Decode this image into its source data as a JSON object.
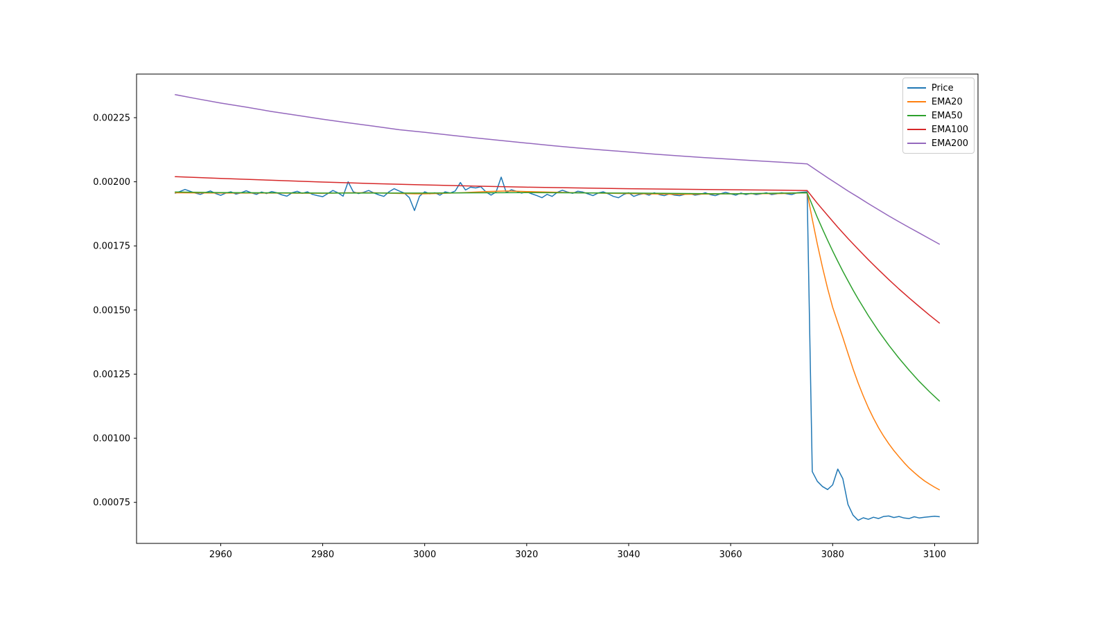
{
  "figure": {
    "background": "#ffffff"
  },
  "chart_data": {
    "type": "line",
    "title": "",
    "xlabel": "",
    "ylabel": "",
    "grid": false,
    "xlim": [
      2943.5,
      3108.5
    ],
    "ylim": [
      0.00059,
      0.00242
    ],
    "x_ticks": [
      2960,
      2980,
      3000,
      3020,
      3040,
      3060,
      3080,
      3100
    ],
    "y_ticks": [
      0.00075,
      0.001,
      0.00125,
      0.0015,
      0.00175,
      0.002,
      0.00225
    ],
    "y_tick_labels": [
      "0.00075",
      "0.00100",
      "0.00125",
      "0.00150",
      "0.00175",
      "0.00200",
      "0.00225"
    ],
    "legend": {
      "position": "upper right",
      "entries": [
        "Price",
        "EMA20",
        "EMA50",
        "EMA100",
        "EMA200"
      ]
    },
    "series": [
      {
        "name": "Price",
        "color": "#1f77b4",
        "x_start": 2951,
        "x_step": 1,
        "y": [
          0.001955,
          0.001962,
          0.00197,
          0.001963,
          0.001956,
          0.001951,
          0.001958,
          0.001964,
          0.001954,
          0.001947,
          0.001956,
          0.001961,
          0.001952,
          0.001957,
          0.001965,
          0.001957,
          0.001951,
          0.00196,
          0.001954,
          0.001962,
          0.001957,
          0.001949,
          0.001944,
          0.001957,
          0.001963,
          0.001955,
          0.001961,
          0.001951,
          0.001946,
          0.001942,
          0.001954,
          0.001966,
          0.001957,
          0.001944,
          0.002,
          0.001961,
          0.001954,
          0.001959,
          0.001966,
          0.001957,
          0.001949,
          0.001943,
          0.001961,
          0.001973,
          0.001964,
          0.001956,
          0.001938,
          0.001888,
          0.001944,
          0.001961,
          0.001953,
          0.001957,
          0.001948,
          0.001961,
          0.001956,
          0.001964,
          0.001997,
          0.001968,
          0.001979,
          0.001976,
          0.001981,
          0.001961,
          0.001948,
          0.00196,
          0.002018,
          0.001958,
          0.001969,
          0.001963,
          0.001956,
          0.001961,
          0.001953,
          0.001946,
          0.001938,
          0.001951,
          0.001943,
          0.001959,
          0.001967,
          0.00196,
          0.001955,
          0.001963,
          0.00196,
          0.001953,
          0.001946,
          0.001956,
          0.001961,
          0.001953,
          0.001943,
          0.001938,
          0.00195,
          0.001957,
          0.001943,
          0.00195,
          0.001954,
          0.001948,
          0.001957,
          0.00195,
          0.001946,
          0.001953,
          0.001948,
          0.001946,
          0.001951,
          0.001954,
          0.001948,
          0.001951,
          0.001957,
          0.00195,
          0.001946,
          0.001953,
          0.001959,
          0.001953,
          0.001948,
          0.001956,
          0.00195,
          0.001955,
          0.00195,
          0.001953,
          0.001957,
          0.00195,
          0.001953,
          0.001957,
          0.001953,
          0.00195,
          0.001957,
          0.001959,
          0.001961,
          0.00087,
          0.000832,
          0.000812,
          0.0008,
          0.000818,
          0.00088,
          0.000842,
          0.000742,
          0.0007,
          0.00068,
          0.00069,
          0.000684,
          0.000692,
          0.000687,
          0.000695,
          0.000697,
          0.000691,
          0.000695,
          0.000689,
          0.000687,
          0.000694,
          0.000689,
          0.000692,
          0.000694,
          0.000696,
          0.000694
        ]
      },
      {
        "name": "EMA20",
        "color": "#ff7f0e",
        "points": [
          [
            2951,
            0.001957
          ],
          [
            2960,
            0.001956
          ],
          [
            2970,
            0.001956
          ],
          [
            2980,
            0.001955
          ],
          [
            2985,
            0.001957
          ],
          [
            2990,
            0.001957
          ],
          [
            2998,
            0.001953
          ],
          [
            3000,
            0.001953
          ],
          [
            3007,
            0.001957
          ],
          [
            3012,
            0.001962
          ],
          [
            3016,
            0.001964
          ],
          [
            3020,
            0.001962
          ],
          [
            3030,
            0.001957
          ],
          [
            3040,
            0.001954
          ],
          [
            3050,
            0.001951
          ],
          [
            3060,
            0.001953
          ],
          [
            3070,
            0.001954
          ],
          [
            3075,
            0.001957
          ],
          [
            3076,
            0.001854
          ],
          [
            3077,
            0.001757
          ],
          [
            3078,
            0.001667
          ],
          [
            3079,
            0.001584
          ],
          [
            3080,
            0.001511
          ],
          [
            3081,
            0.001451
          ],
          [
            3082,
            0.001393
          ],
          [
            3083,
            0.001331
          ],
          [
            3084,
            0.001271
          ],
          [
            3085,
            0.001215
          ],
          [
            3086,
            0.001165
          ],
          [
            3087,
            0.001119
          ],
          [
            3088,
            0.001078
          ],
          [
            3089,
            0.001041
          ],
          [
            3090,
            0.001008
          ],
          [
            3091,
            0.000979
          ],
          [
            3092,
            0.000952
          ],
          [
            3093,
            0.000928
          ],
          [
            3094,
            0.000905
          ],
          [
            3095,
            0.000884
          ],
          [
            3096,
            0.000866
          ],
          [
            3097,
            0.000849
          ],
          [
            3098,
            0.000834
          ],
          [
            3099,
            0.000821
          ],
          [
            3100,
            0.000809
          ],
          [
            3101,
            0.000798
          ]
        ]
      },
      {
        "name": "EMA50",
        "color": "#2ca02c",
        "points": [
          [
            2951,
            0.00196
          ],
          [
            2960,
            0.001958
          ],
          [
            2980,
            0.001956
          ],
          [
            3000,
            0.001956
          ],
          [
            3020,
            0.001958
          ],
          [
            3040,
            0.001956
          ],
          [
            3060,
            0.001953
          ],
          [
            3075,
            0.001957
          ],
          [
            3076,
            0.001909
          ],
          [
            3077,
            0.001861
          ],
          [
            3078,
            0.001816
          ],
          [
            3079,
            0.001772
          ],
          [
            3080,
            0.00173
          ],
          [
            3081,
            0.00169
          ],
          [
            3082,
            0.001651
          ],
          [
            3083,
            0.001614
          ],
          [
            3084,
            0.001578
          ],
          [
            3085,
            0.001543
          ],
          [
            3087,
            0.001478
          ],
          [
            3089,
            0.001418
          ],
          [
            3091,
            0.001363
          ],
          [
            3093,
            0.001312
          ],
          [
            3095,
            0.001265
          ],
          [
            3097,
            0.001221
          ],
          [
            3099,
            0.001181
          ],
          [
            3101,
            0.001144
          ]
        ]
      },
      {
        "name": "EMA100",
        "color": "#d62728",
        "points": [
          [
            2951,
            0.00202
          ],
          [
            2960,
            0.002013
          ],
          [
            2970,
            0.002006
          ],
          [
            2980,
            0.001999
          ],
          [
            2990,
            0.001993
          ],
          [
            3000,
            0.001988
          ],
          [
            3010,
            0.001983
          ],
          [
            3020,
            0.001979
          ],
          [
            3030,
            0.001976
          ],
          [
            3040,
            0.001973
          ],
          [
            3050,
            0.001971
          ],
          [
            3060,
            0.001969
          ],
          [
            3070,
            0.001967
          ],
          [
            3075,
            0.001966
          ],
          [
            3076,
            0.001941
          ],
          [
            3077,
            0.001916
          ],
          [
            3079,
            0.001869
          ],
          [
            3081,
            0.001823
          ],
          [
            3083,
            0.001779
          ],
          [
            3085,
            0.001737
          ],
          [
            3087,
            0.001696
          ],
          [
            3089,
            0.001657
          ],
          [
            3091,
            0.001619
          ],
          [
            3093,
            0.001582
          ],
          [
            3095,
            0.001547
          ],
          [
            3097,
            0.001513
          ],
          [
            3099,
            0.00148
          ],
          [
            3101,
            0.001448
          ]
        ]
      },
      {
        "name": "EMA200",
        "color": "#9467bd",
        "points": [
          [
            2951,
            0.00234
          ],
          [
            2955,
            0.002325
          ],
          [
            2960,
            0.002307
          ],
          [
            2965,
            0.002291
          ],
          [
            2970,
            0.002274
          ],
          [
            2975,
            0.002259
          ],
          [
            2980,
            0.002244
          ],
          [
            2985,
            0.00223
          ],
          [
            2990,
            0.002217
          ],
          [
            2995,
            0.002203
          ],
          [
            3000,
            0.002193
          ],
          [
            3005,
            0.002182
          ],
          [
            3010,
            0.002171
          ],
          [
            3015,
            0.002161
          ],
          [
            3020,
            0.002151
          ],
          [
            3025,
            0.002141
          ],
          [
            3030,
            0.002132
          ],
          [
            3035,
            0.002124
          ],
          [
            3040,
            0.002116
          ],
          [
            3045,
            0.002108
          ],
          [
            3050,
            0.002101
          ],
          [
            3055,
            0.002094
          ],
          [
            3060,
            0.002088
          ],
          [
            3065,
            0.002082
          ],
          [
            3070,
            0.002076
          ],
          [
            3075,
            0.00207
          ],
          [
            3077,
            0.002043
          ],
          [
            3079,
            0.002016
          ],
          [
            3081,
            0.00199
          ],
          [
            3083,
            0.001964
          ],
          [
            3085,
            0.00194
          ],
          [
            3087,
            0.001915
          ],
          [
            3089,
            0.001891
          ],
          [
            3091,
            0.001867
          ],
          [
            3093,
            0.001844
          ],
          [
            3095,
            0.001822
          ],
          [
            3097,
            0.0018
          ],
          [
            3099,
            0.001778
          ],
          [
            3101,
            0.001756
          ]
        ]
      }
    ]
  }
}
